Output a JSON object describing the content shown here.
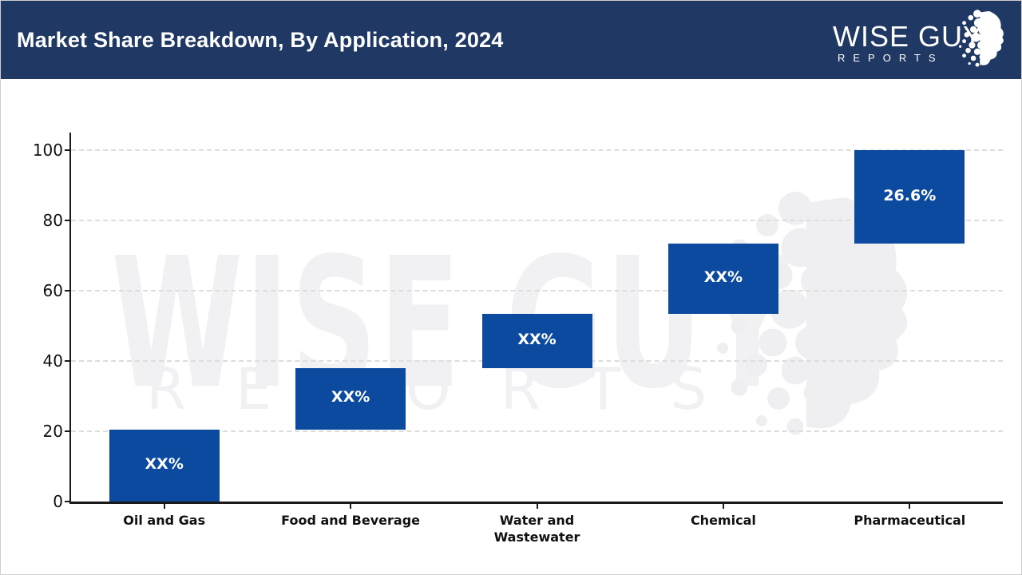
{
  "header": {
    "title": "Market Share Breakdown, By Application, 2024",
    "logo": {
      "brand": "WISE GUY",
      "sub": "REPORTS"
    }
  },
  "watermark": {
    "brand": "WISE GUY",
    "sub": "REPORTS"
  },
  "chart_data": {
    "type": "bar",
    "subtype": "waterfall",
    "title": "Market Share Breakdown, By Application, 2024",
    "unit": "%",
    "categories": [
      "Oil and Gas",
      "Food and Beverage",
      "Water and Wastewater",
      "Chemical",
      "Pharmaceutical"
    ],
    "category_display_lines": [
      [
        "Oil and Gas"
      ],
      [
        "Food and Beverage"
      ],
      [
        "Water and",
        "Wastewater"
      ],
      [
        "Chemical"
      ],
      [
        "Pharmaceutical"
      ]
    ],
    "segments": [
      {
        "category": "Oil and Gas",
        "start": 0,
        "end": 20.5,
        "label": "XX%"
      },
      {
        "category": "Food and Beverage",
        "start": 20.5,
        "end": 38.0,
        "label": "XX%"
      },
      {
        "category": "Water and Wastewater",
        "start": 38.0,
        "end": 53.4,
        "label": "XX%"
      },
      {
        "category": "Chemical",
        "start": 53.4,
        "end": 73.4,
        "label": "XX%"
      },
      {
        "category": "Pharmaceutical",
        "start": 73.4,
        "end": 100.0,
        "label": "26.6%"
      }
    ],
    "yticks": [
      0,
      20,
      40,
      60,
      80,
      100
    ],
    "ylim": [
      0,
      105
    ],
    "grid": "dashed-horizontal",
    "legend": "none",
    "bar_color": "#0b4a9e",
    "bar_label_color": "#ffffff",
    "axis_color": "#1a1a1a",
    "header_color": "#1f3864",
    "watermark_color": "#f1f1f4"
  }
}
